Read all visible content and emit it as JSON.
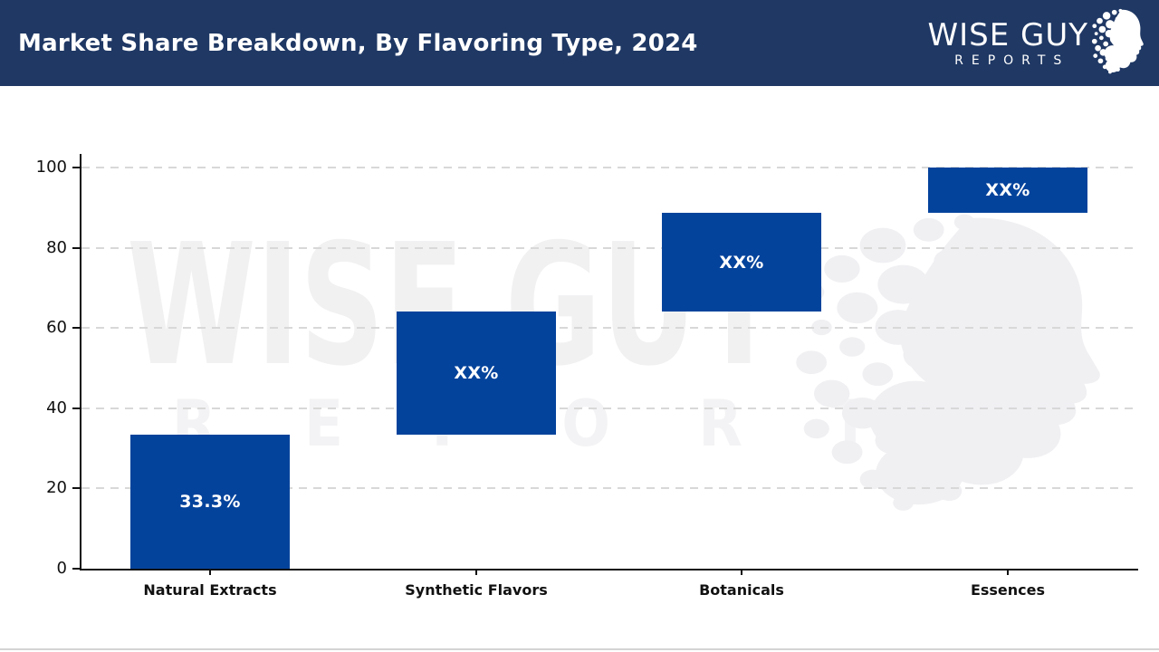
{
  "header": {
    "title": "Market Share Breakdown, By Flavoring Type, 2024",
    "logo": {
      "line1": "WISE GUY",
      "line2": "REPORTS"
    }
  },
  "watermark": {
    "line1": "WISE GUY",
    "line2": "R E P O R T S"
  },
  "chart_data": {
    "type": "bar",
    "subtype": "waterfall",
    "categories": [
      "Natural Extracts",
      "Synthetic Flavors",
      "Botanicals",
      "Essences"
    ],
    "segments": [
      {
        "category": "Natural Extracts",
        "start": 0,
        "end": 33.3,
        "label": "33.3%"
      },
      {
        "category": "Synthetic Flavors",
        "start": 33.3,
        "end": 64.1,
        "label": "XX%"
      },
      {
        "category": "Botanicals",
        "start": 64.1,
        "end": 88.7,
        "label": "XX%"
      },
      {
        "category": "Essences",
        "start": 88.7,
        "end": 100,
        "label": "XX%"
      }
    ],
    "y_ticks": [
      0,
      20,
      40,
      60,
      80,
      100
    ],
    "ylim": [
      0,
      100
    ],
    "grid": "dashed-horizontal",
    "legend": "none",
    "bar_color": "#04439c",
    "bar_label_color": "#ffffff"
  },
  "colors": {
    "header_bg": "#1f3864",
    "bar": "#04439c",
    "grid": "#d8d8d8",
    "axis": "#111111",
    "watermark": "#f1f1f2",
    "bottom_border": "#d4d4d4"
  }
}
